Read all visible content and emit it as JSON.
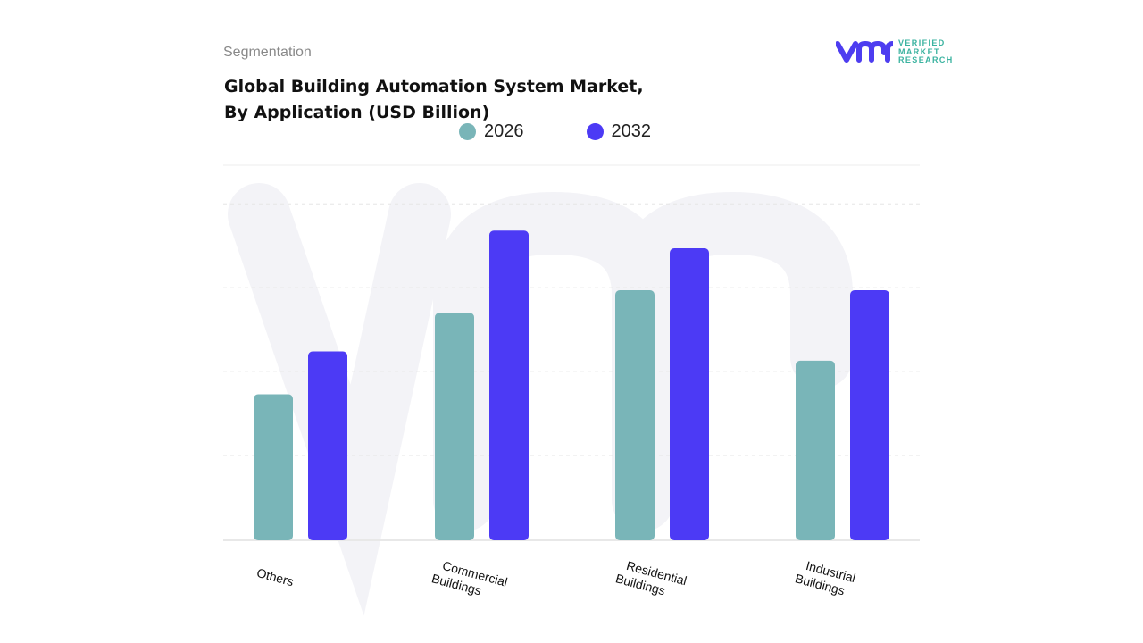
{
  "header": {
    "segment_label": "Segmentation",
    "title_line1": "Global Building Automation System Market,",
    "title_line2": "By Application (USD Billion)"
  },
  "logo": {
    "line1": "VERIFIED",
    "line2": "MARKET",
    "line3": "RESEARCH",
    "brand_color": "#4d3df0",
    "text_color": "#3bb3a0"
  },
  "chart_data": {
    "type": "bar",
    "title": "Global Building Automation System Market, By Application (USD Billion)",
    "xlabel": "",
    "ylabel": "",
    "categories": [
      "Others",
      "Commercial Buildings",
      "Residential Buildings",
      "Industrial Buildings"
    ],
    "category_lines": [
      [
        "Others"
      ],
      [
        "Commercial",
        "Buildings"
      ],
      [
        "Residential",
        "Buildings"
      ],
      [
        "Industrial",
        "Buildings"
      ]
    ],
    "series": [
      {
        "name": "2026",
        "color": "#79b5b8",
        "values": [
          1.73,
          2.7,
          2.97,
          2.13
        ]
      },
      {
        "name": "2032",
        "color": "#4c3af5",
        "values": [
          2.24,
          3.68,
          3.47,
          2.97
        ]
      }
    ],
    "ylim": [
      0,
      4.46
    ],
    "grid": true,
    "legend": "top-center"
  }
}
